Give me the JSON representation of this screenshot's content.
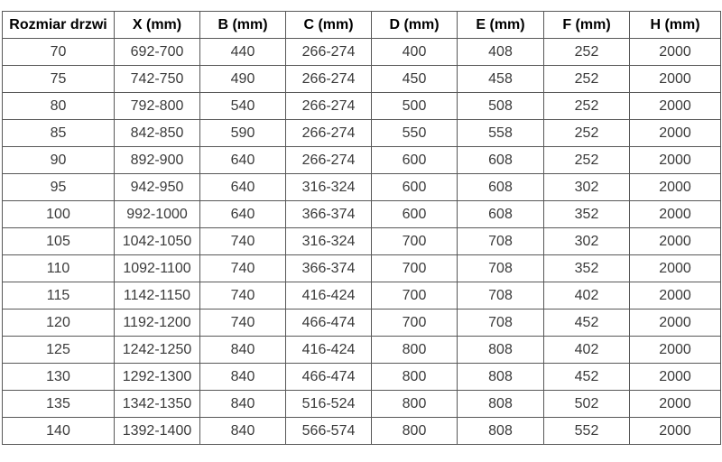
{
  "table": {
    "columns": [
      "Rozmiar drzwi",
      "X (mm)",
      "B (mm)",
      "C (mm)",
      "D (mm)",
      "E (mm)",
      "F (mm)",
      "H (mm)"
    ],
    "rows": [
      [
        "70",
        "692-700",
        "440",
        "266-274",
        "400",
        "408",
        "252",
        "2000"
      ],
      [
        "75",
        "742-750",
        "490",
        "266-274",
        "450",
        "458",
        "252",
        "2000"
      ],
      [
        "80",
        "792-800",
        "540",
        "266-274",
        "500",
        "508",
        "252",
        "2000"
      ],
      [
        "85",
        "842-850",
        "590",
        "266-274",
        "550",
        "558",
        "252",
        "2000"
      ],
      [
        "90",
        "892-900",
        "640",
        "266-274",
        "600",
        "608",
        "252",
        "2000"
      ],
      [
        "95",
        "942-950",
        "640",
        "316-324",
        "600",
        "608",
        "302",
        "2000"
      ],
      [
        "100",
        "992-1000",
        "640",
        "366-374",
        "600",
        "608",
        "352",
        "2000"
      ],
      [
        "105",
        "1042-1050",
        "740",
        "316-324",
        "700",
        "708",
        "302",
        "2000"
      ],
      [
        "110",
        "1092-1100",
        "740",
        "366-374",
        "700",
        "708",
        "352",
        "2000"
      ],
      [
        "115",
        "1142-1150",
        "740",
        "416-424",
        "700",
        "708",
        "402",
        "2000"
      ],
      [
        "120",
        "1192-1200",
        "740",
        "466-474",
        "700",
        "708",
        "452",
        "2000"
      ],
      [
        "125",
        "1242-1250",
        "840",
        "416-424",
        "800",
        "808",
        "402",
        "2000"
      ],
      [
        "130",
        "1292-1300",
        "840",
        "466-474",
        "800",
        "808",
        "452",
        "2000"
      ],
      [
        "135",
        "1342-1350",
        "840",
        "516-524",
        "800",
        "808",
        "502",
        "2000"
      ],
      [
        "140",
        "1392-1400",
        "840",
        "566-574",
        "800",
        "808",
        "552",
        "2000"
      ]
    ]
  },
  "colors": {
    "border": "#585858",
    "header_text": "#000000",
    "cell_text": "#3a3a3a",
    "background": "#ffffff"
  }
}
